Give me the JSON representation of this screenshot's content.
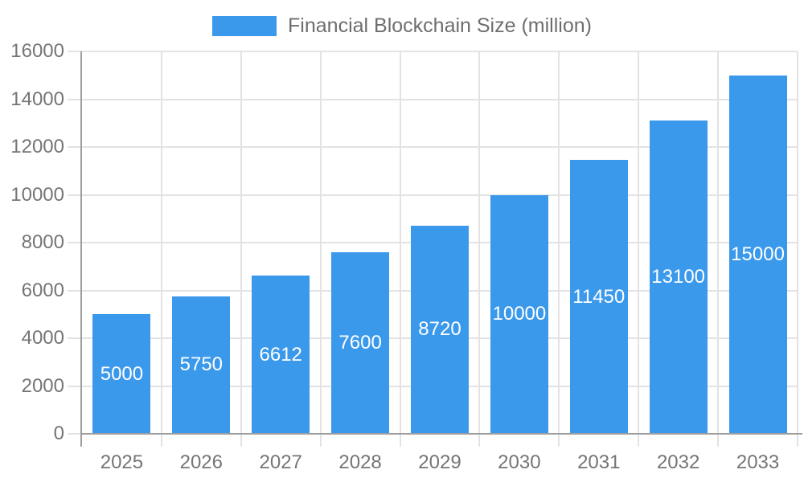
{
  "legend": {
    "label": "Financial Blockchain Size (million)"
  },
  "chart_data": {
    "type": "bar",
    "title": "Financial Blockchain Size (million)",
    "series_name": "Financial Blockchain Size (million)",
    "categories": [
      "2025",
      "2026",
      "2027",
      "2028",
      "2029",
      "2030",
      "2031",
      "2032",
      "2033"
    ],
    "values": [
      5000,
      5750,
      6612,
      7600,
      8720,
      10000,
      11450,
      13100,
      15000
    ],
    "value_labels": [
      "5000",
      "5750",
      "6612",
      "7600",
      "8720",
      "10000",
      "11450",
      "13100",
      "15000"
    ],
    "xlabel": "",
    "ylabel": "",
    "ylim": [
      0,
      16000
    ],
    "ytick_step": 2000,
    "ytick_labels": [
      "0",
      "2000",
      "4000",
      "6000",
      "8000",
      "10000",
      "12000",
      "14000",
      "16000"
    ],
    "grid": true,
    "legend_position": "top",
    "colors": {
      "bar": "#3B99EC",
      "value_label": "#FFFFFF",
      "axis_text": "#757575",
      "legend_text": "#6E6E6E",
      "grid_line": "#E3E3E3",
      "axis_line": "#9E9E9E"
    }
  }
}
